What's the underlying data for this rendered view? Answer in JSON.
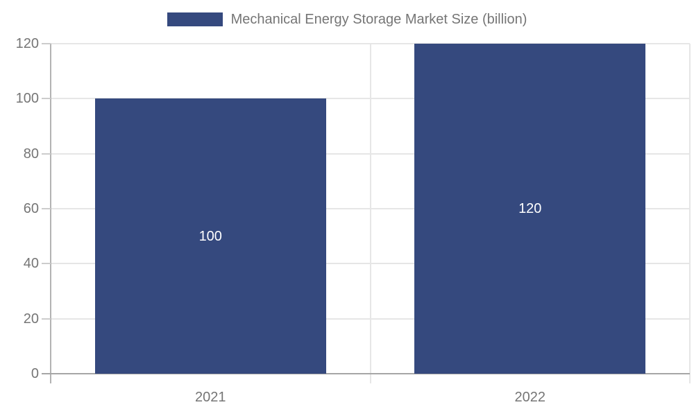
{
  "legend": {
    "label": "Mechanical Energy Storage Market Size (billion)"
  },
  "chart_data": {
    "type": "bar",
    "title": "Mechanical Energy Storage Market Size (billion)",
    "categories": [
      "2021",
      "2022"
    ],
    "series": [
      {
        "name": "Mechanical Energy Storage Market Size (billion)",
        "values": [
          100,
          120
        ]
      }
    ],
    "bar_labels": [
      "100",
      "120"
    ],
    "ylim": [
      0,
      120
    ],
    "yticks": [
      0,
      20,
      40,
      60,
      80,
      100,
      120
    ],
    "xlabel": "",
    "ylabel": "",
    "grid": true,
    "legend_position": "top-center",
    "colors": {
      "bar": "#35497E",
      "bar_label": "#FFFFFF",
      "grid": "#E6E6E6",
      "axis": "#A6A6A6",
      "spine": "#B3B3B3",
      "tick": "#CCCCCC",
      "text": "#757575"
    }
  }
}
